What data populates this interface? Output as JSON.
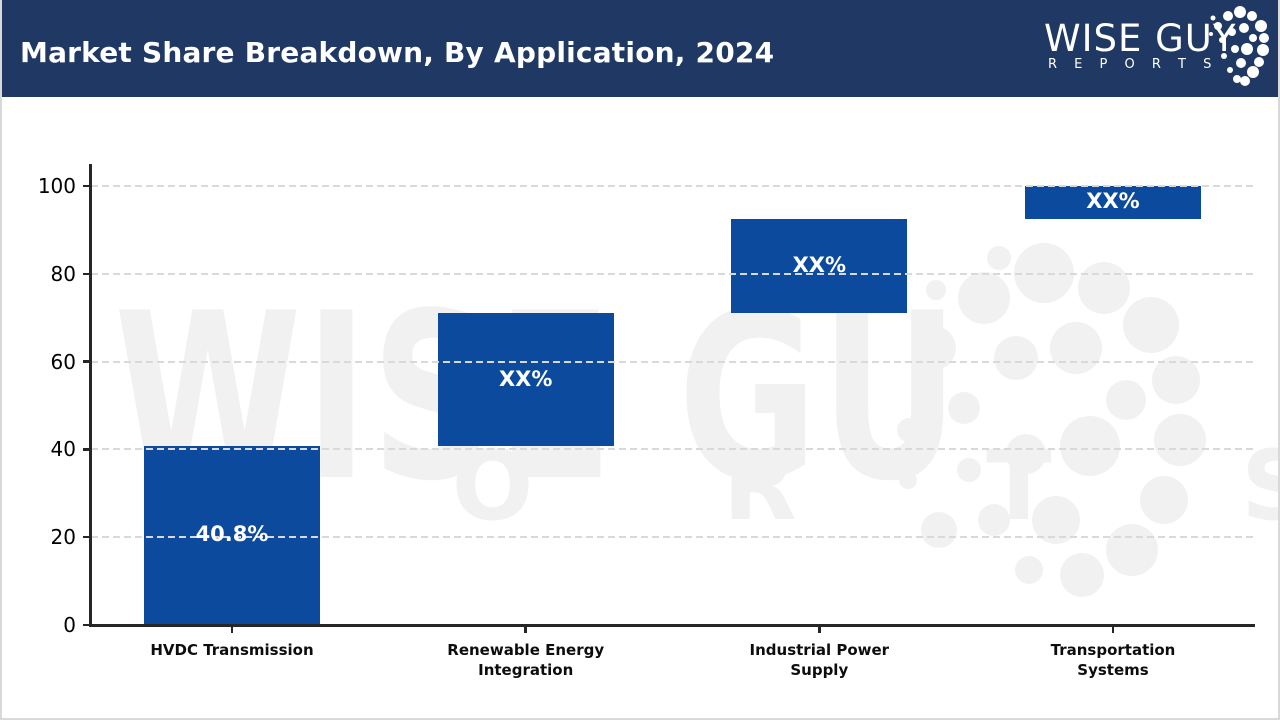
{
  "header": {
    "title": "Market Share Breakdown, By Application, 2024",
    "logo": {
      "wordmark": "WISE GUY",
      "subtext": "R E P O R T S"
    },
    "bg_color": "#1f3864"
  },
  "watermark": {
    "line1": "WISE GU",
    "line2": "P O R T S"
  },
  "chart_data": {
    "type": "bar",
    "variant": "waterfall",
    "title": "Market Share Breakdown, By Application, 2024",
    "xlabel": "",
    "ylabel": "",
    "categories": [
      "HVDC Transmission",
      "Renewable Energy\nIntegration",
      "Industrial Power\nSupply",
      "Transportation\nSystems"
    ],
    "segments": [
      {
        "category": "HVDC Transmission",
        "start": 0,
        "end": 40.8,
        "label": "40.8%"
      },
      {
        "category": "Renewable Energy Integration",
        "start": 40.8,
        "end": 71.0,
        "label": "XX%"
      },
      {
        "category": "Industrial Power Supply",
        "start": 71.0,
        "end": 92.5,
        "label": "XX%"
      },
      {
        "category": "Transportation Systems",
        "start": 92.5,
        "end": 100.0,
        "label": "XX%"
      }
    ],
    "yticks": [
      0,
      20,
      40,
      60,
      80,
      100
    ],
    "ylim": [
      0,
      105
    ],
    "bar_color": "#0c4a9e",
    "grid": "horizontal-dashed",
    "grid_color": "#d9d9d9",
    "legend": "none"
  }
}
